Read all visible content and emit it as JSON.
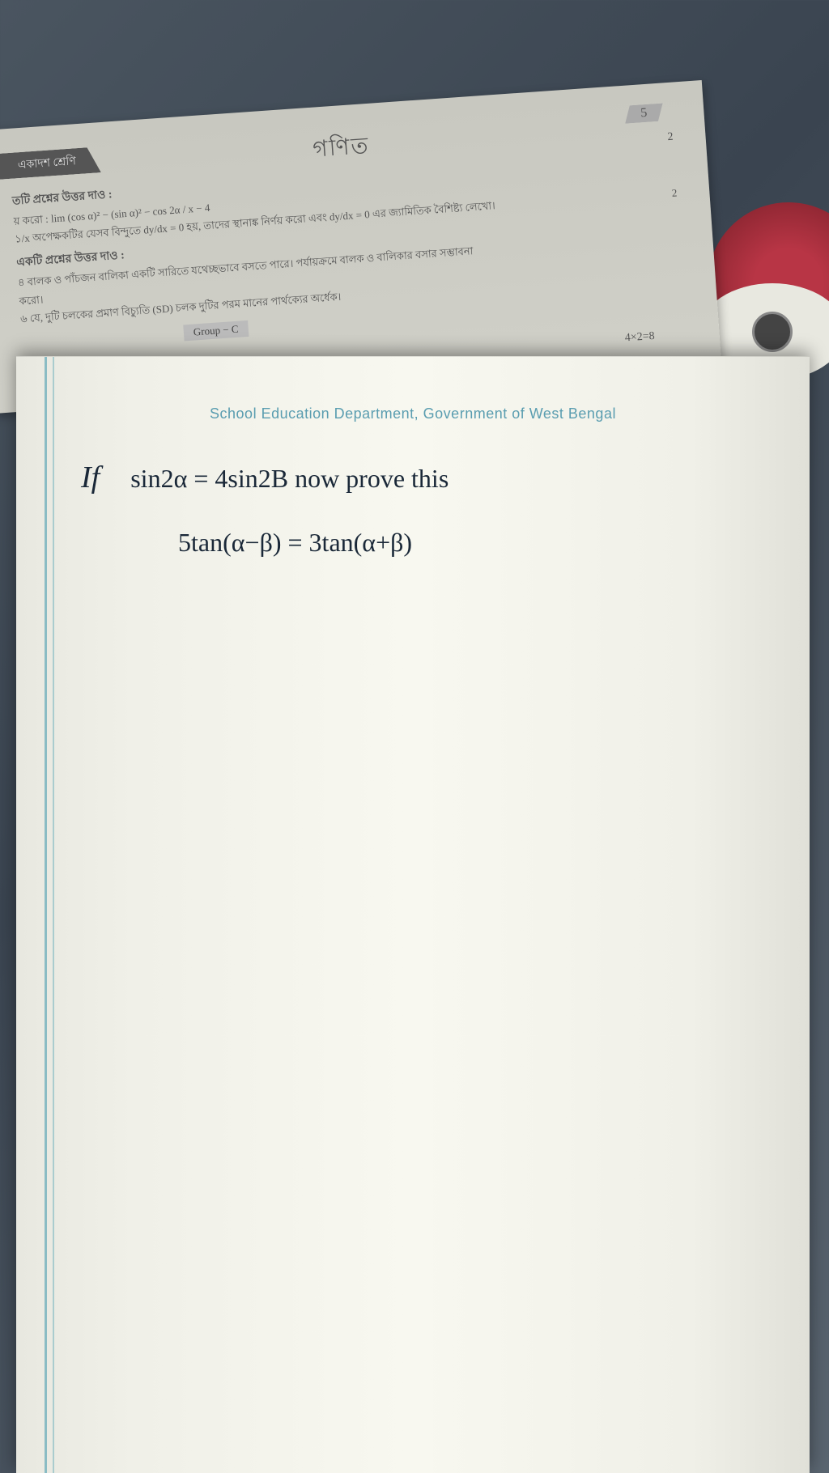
{
  "scene": {
    "background_gradient": [
      "#4a5560",
      "#3a4450",
      "#5a6570"
    ],
    "red_object_colors": [
      "#b83545",
      "#8a2530"
    ],
    "white_object_color": "#e8e8e0",
    "white_object_hole_color": "#444444"
  },
  "top_paper": {
    "rotation_deg": -4,
    "background_colors": [
      "#c8c8c0",
      "#d0d0c8"
    ],
    "header_tab": "একাদশ শ্রেণি",
    "subject": "গণিত",
    "page_tab": "5",
    "page_num": "2",
    "section1_heading": "তটি প্রশ্নের উত্তর দাও :",
    "line1": "য় করো : lim (cos α)² − (sin α)² − cos 2α / x − 4",
    "line2": "১/x অপেক্ষকটির যেসব বিন্দুতে dy/dx = 0 হয়, তাদের স্থানাঙ্ক নির্ণয় করো এবং dy/dx = 0 এর জ্যামিতিক বৈশিষ্ট্য লেখো।",
    "line2_marks": "2",
    "section2_heading": "একটি প্রশ্নের উত্তর দাও :",
    "line3": "৪ বালক ও পাঁচজন বালিকা একটি সারিতে যথেচ্ছভাবে বসতে পারে। পর্যায়ক্রমে বালক ও বালিকার বসার সম্ভাবনা",
    "line4": "করো।",
    "line5": "৬ যে, দুটি চলকের প্রমাণ বিচ্যুতি (SD) চলক দুটির পরম মানের পার্থক্যের অর্ধেক।",
    "group_label": "Group − C",
    "marks": "4×2=8"
  },
  "notebook": {
    "background_colors": [
      "#e8e8e0",
      "#f0f0e8",
      "#f8f8f0"
    ],
    "margin_line_color": "#4a9db0",
    "header": "School Education Department, Government of West Bengal",
    "header_color": "#5a9db0",
    "handwriting_color": "#1a2838",
    "line1_if": "If",
    "line1_math": "sin2α = 4sin2B   now  prove  this",
    "line2_math": "5tan(α−β) = 3tan(α+β)"
  }
}
